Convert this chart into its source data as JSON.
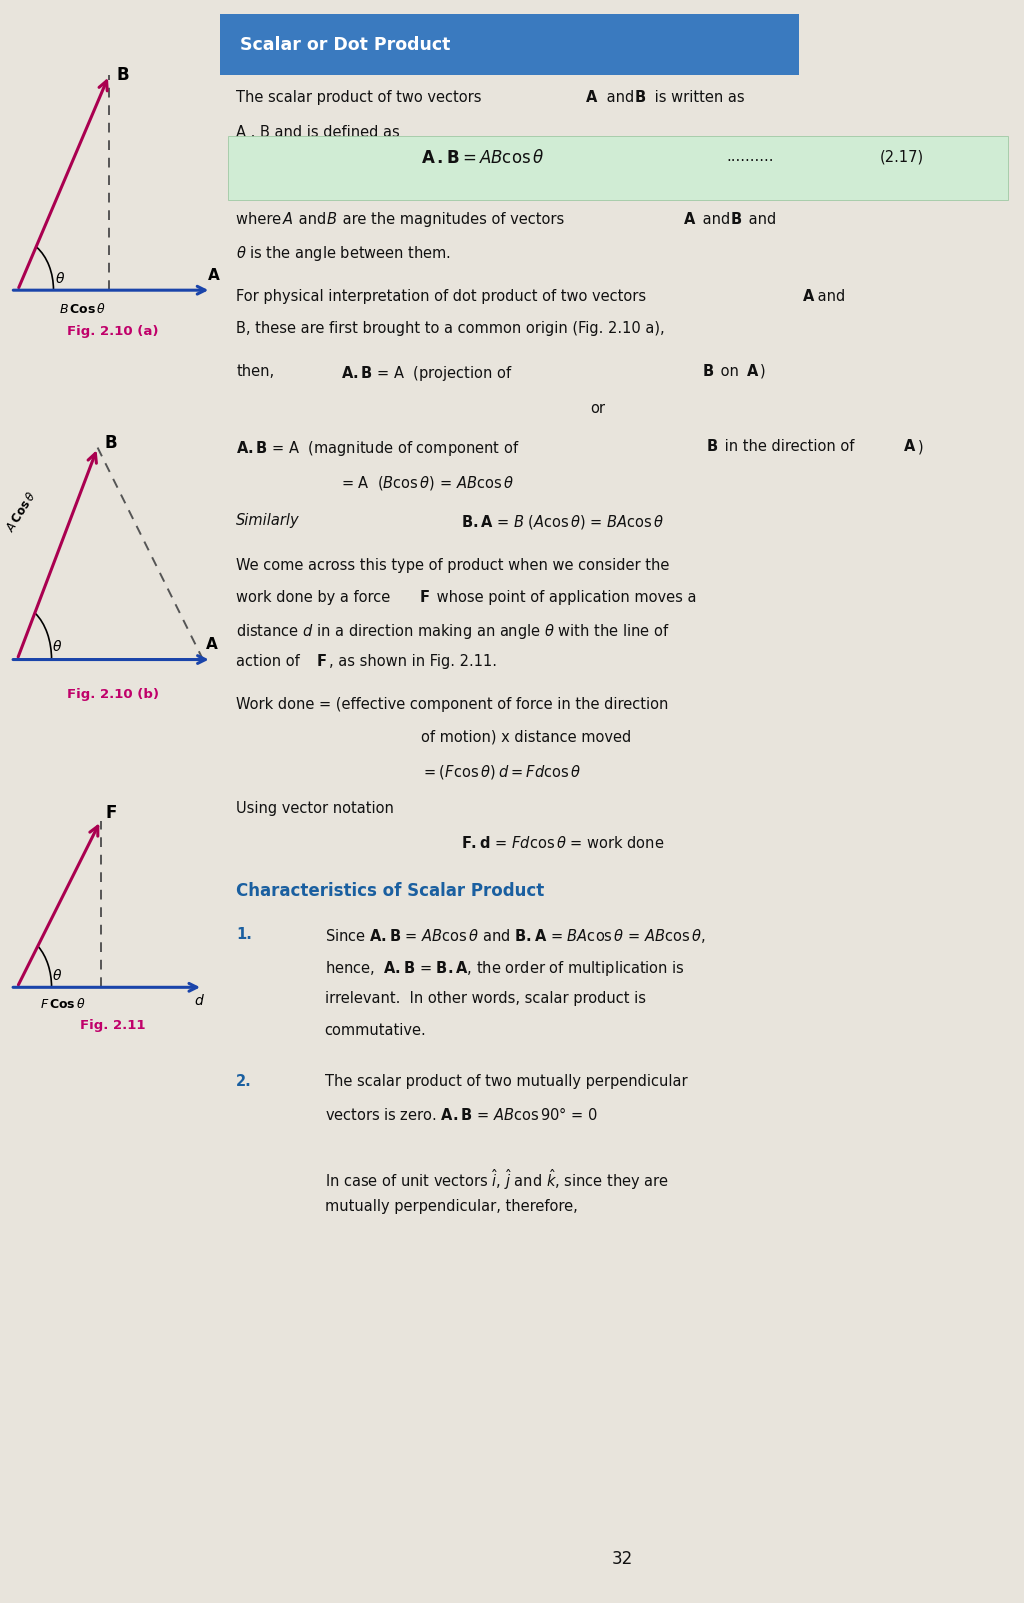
{
  "page_bg": "#e8e4dc",
  "left_panel_bg": "#d8d2c4",
  "title_bg": "#3a7abf",
  "title_text": "Scalar or Dot Product",
  "title_color": "#ffffff",
  "fig_label_color": "#c0006a",
  "arrow_color": "#aa0050",
  "axis_color": "#1a44aa",
  "dashed_color": "#555555",
  "text_color": "#111111",
  "characteristics_color": "#1a5fa0",
  "fig_width": 10.24,
  "fig_height": 16.03,
  "page_number": "32",
  "formula_bg": "#d0ecd4",
  "formula_border": "#a0c8a4"
}
